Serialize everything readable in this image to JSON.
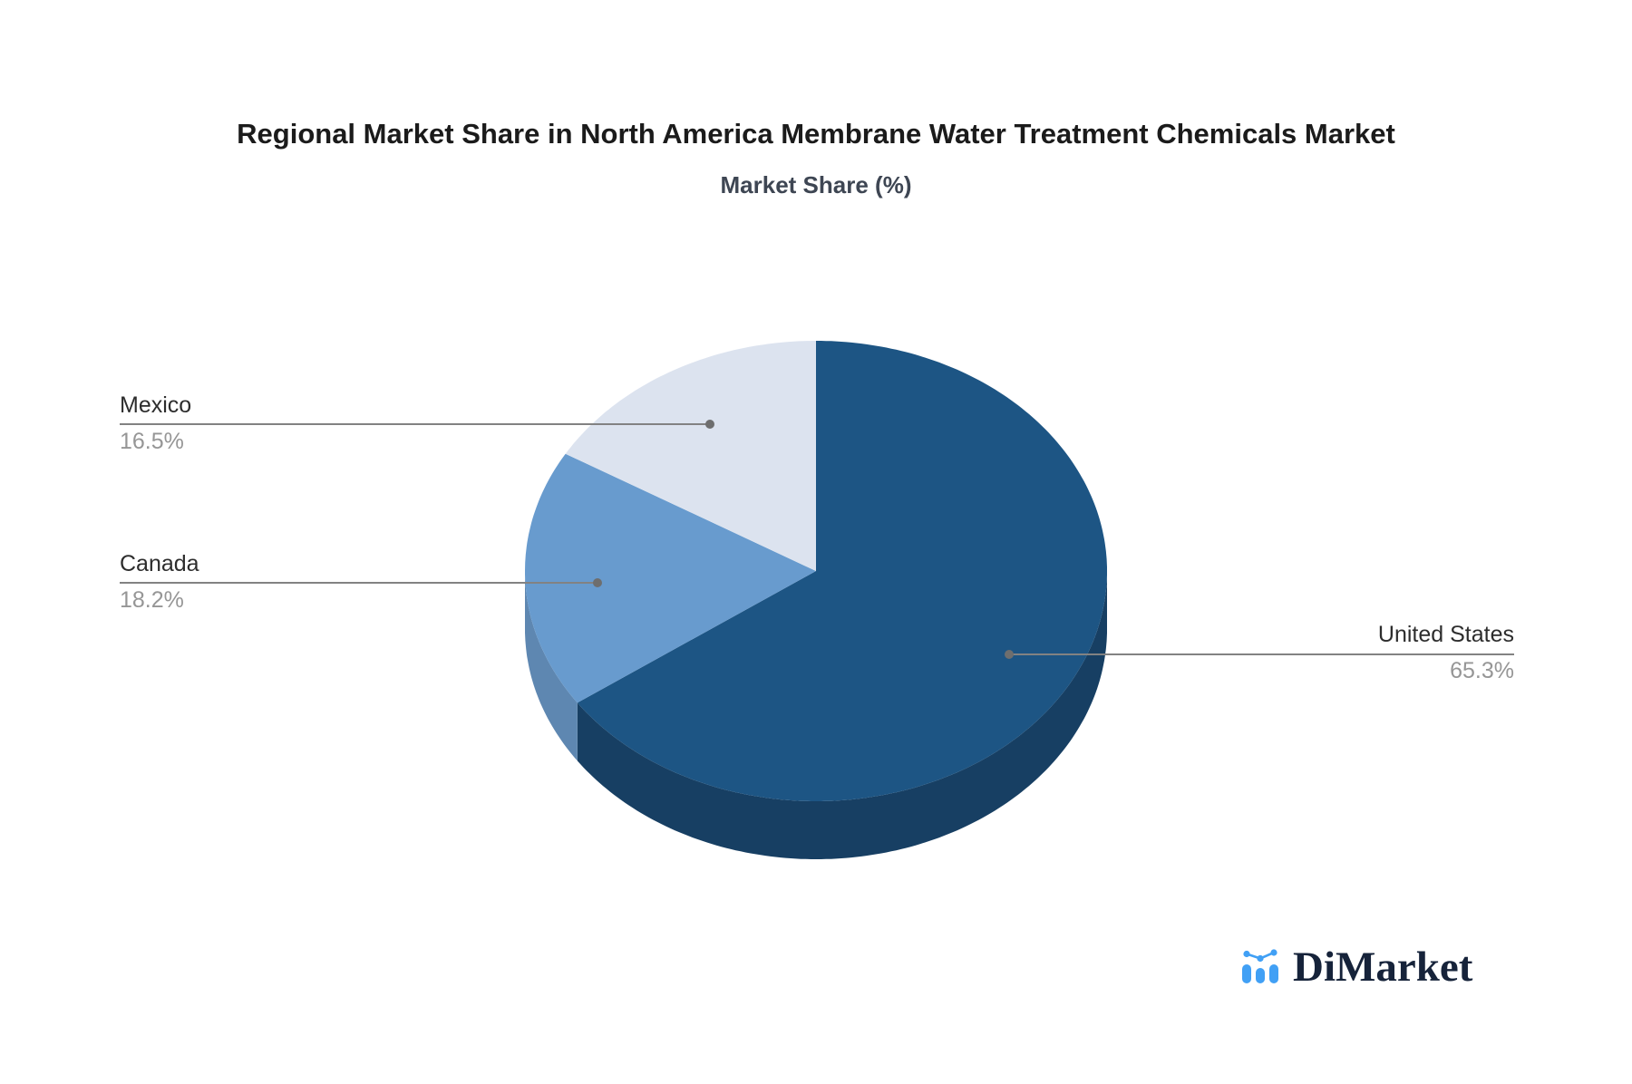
{
  "chart_data": {
    "type": "pie",
    "title": "Regional Market Share in North America Membrane Water Treatment Chemicals Market",
    "subtitle": "Market Share (%)",
    "unit": "%",
    "style": "3d-pie",
    "start_angle_deg": 90,
    "direction": "clockwise",
    "legend_position": "none",
    "series": [
      {
        "name": "United States",
        "value": 65.3,
        "value_label": "65.3%",
        "color": "#1d5584",
        "side_color": "#173f63"
      },
      {
        "name": "Canada",
        "value": 18.2,
        "value_label": "18.2%",
        "color": "#689bce",
        "side_color": "#5e87b1"
      },
      {
        "name": "Mexico",
        "value": 16.5,
        "value_label": "16.5%",
        "color": "#dce3ef",
        "side_color": "#b9c4d8"
      }
    ]
  },
  "style_colors": {
    "background": "#ffffff",
    "title": "#1b1b1b",
    "subtitle": "#3e4653",
    "label_name": "#2d2d2d",
    "label_value": "#969696",
    "leader_line": "#828282",
    "leader_dot": "#6e6e6e",
    "logo_blue": "#41a0f5",
    "logo_navy": "#16233a"
  },
  "branding": {
    "logo_text": "DiMarket"
  }
}
